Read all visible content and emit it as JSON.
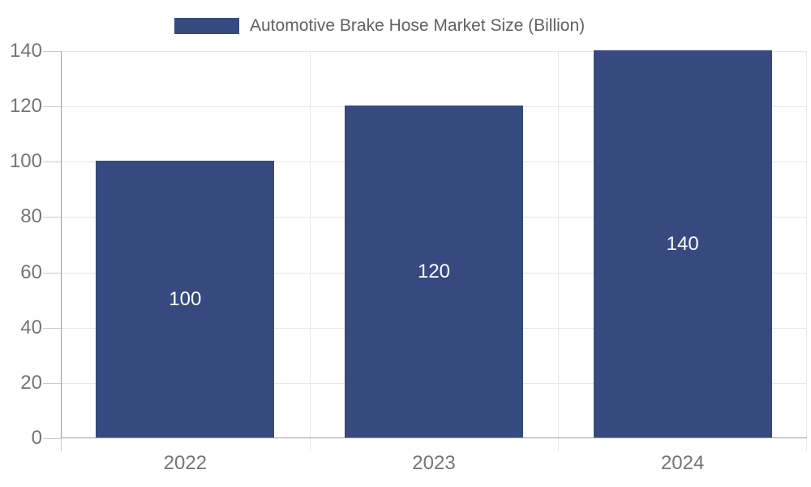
{
  "chart_data": {
    "type": "bar",
    "title": "Automotive Brake Hose Market Size (Billion)",
    "legend": {
      "position": "top",
      "entries": [
        "Automotive Brake Hose Market Size (Billion)"
      ]
    },
    "categories": [
      "2022",
      "2023",
      "2024"
    ],
    "series": [
      {
        "name": "Automotive Brake Hose Market Size (Billion)",
        "values": [
          100,
          120,
          140
        ],
        "data_labels": [
          "100",
          "120",
          "140"
        ]
      }
    ],
    "xlabel": "",
    "ylabel": "",
    "ylim": [
      0,
      140
    ],
    "yticks": [
      0,
      20,
      40,
      60,
      80,
      100,
      120,
      140
    ],
    "ytick_labels": [
      "0",
      "20",
      "40",
      "60",
      "80",
      "100",
      "120",
      "140"
    ],
    "grid": true,
    "colors": {
      "bar": "#364A80",
      "bar_label_text": "#ffffff",
      "gridline": "#e8e8e8",
      "tick_mark": "#c9c9c9",
      "axis_line": "#9e9e9e",
      "tick_label_text": "#757575",
      "legend_text": "#616161",
      "background": "#ffffff"
    }
  }
}
